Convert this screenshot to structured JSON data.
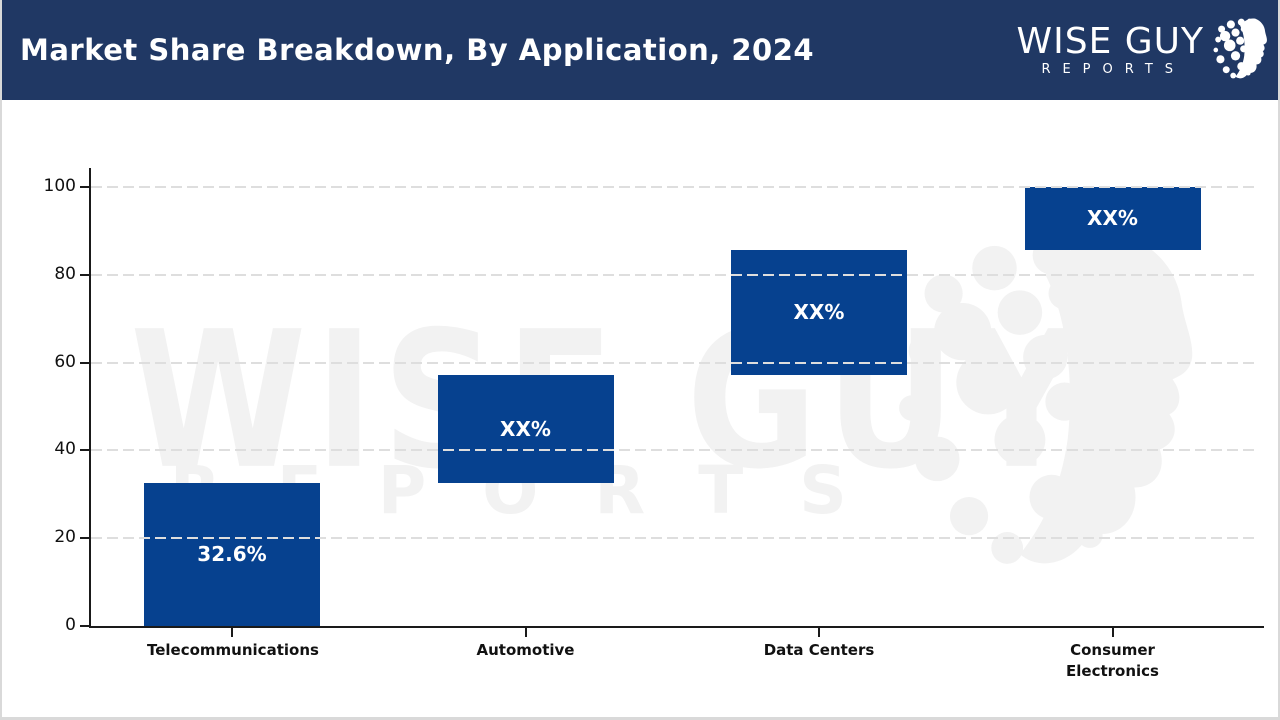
{
  "header": {
    "title": "Market Share Breakdown, By Application, 2024",
    "logo_line1": "WISE GUY",
    "logo_line2": "REPORTS",
    "bg_color": "#203864"
  },
  "watermark": {
    "line1": "WISE GUY",
    "line2": "REPORTS"
  },
  "chart_data": {
    "type": "bar",
    "variant": "floating-waterfall",
    "title": "Market Share Breakdown, By Application, 2024",
    "categories": [
      "Telecommunications",
      "Automotive",
      "Data Centers",
      "Consumer Electronics"
    ],
    "segments": [
      {
        "category": "Telecommunications",
        "start": 0,
        "end": 32.6,
        "label": "32.6%"
      },
      {
        "category": "Automotive",
        "start": 32.6,
        "end": 57.2,
        "label": "XX%"
      },
      {
        "category": "Data Centers",
        "start": 57.2,
        "end": 85.7,
        "label": "XX%"
      },
      {
        "category": "Consumer Electronics",
        "start": 85.7,
        "end": 100,
        "label": "XX%"
      }
    ],
    "y_ticks": [
      0,
      20,
      40,
      60,
      80,
      100
    ],
    "ylim": [
      0,
      104
    ],
    "xlabel": "",
    "ylabel": "",
    "grid": "horizontal-dashed",
    "legend": "none",
    "bar_color": "#06418f",
    "bar_label_color": "#ffffff",
    "axis_color": "#1a1a1a",
    "gridline_color": "#dedede"
  }
}
